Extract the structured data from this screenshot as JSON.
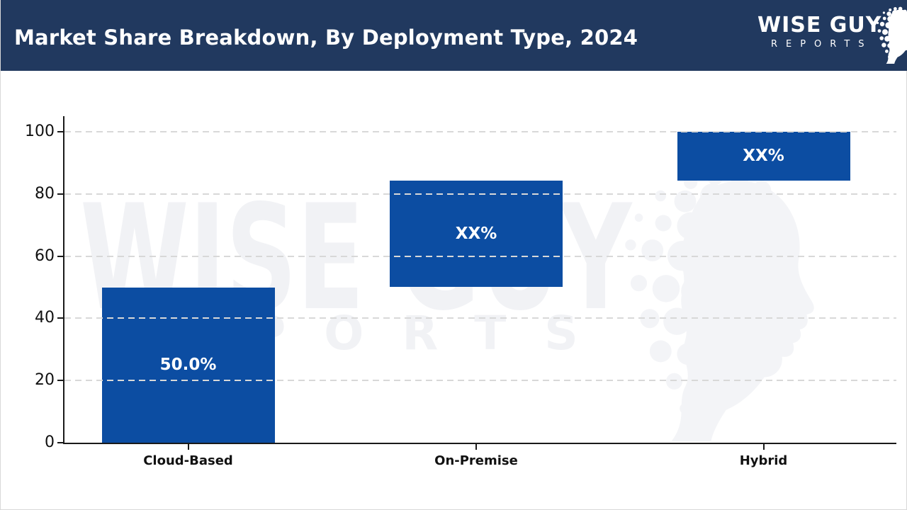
{
  "header": {
    "title": "Market Share Breakdown, By Deployment Type, 2024",
    "logo": {
      "line1": "WISE GUY",
      "line2": "REPORTS"
    }
  },
  "watermark": {
    "line1": "WISE GUY",
    "line2": "REPORTS"
  },
  "chart_data": {
    "type": "bar",
    "subtype": "waterfall",
    "title": "Market Share Breakdown, By Deployment Type, 2024",
    "categories": [
      "Cloud-Based",
      "On-Premise",
      "Hybrid"
    ],
    "series": [
      {
        "name": "Market share (%)",
        "segments": [
          {
            "category": "Cloud-Based",
            "start": 0,
            "end": 50.0,
            "label": "50.0%"
          },
          {
            "category": "On-Premise",
            "start": 50.0,
            "end": 84.3,
            "label": "XX%"
          },
          {
            "category": "Hybrid",
            "start": 84.3,
            "end": 100.0,
            "label": "XX%"
          }
        ]
      }
    ],
    "xlabel": "",
    "ylabel": "",
    "ylim": [
      0,
      100
    ],
    "yticks": [
      0,
      20,
      40,
      60,
      80,
      100
    ],
    "grid": "horizontal-dashed",
    "legend": "none",
    "colors": {
      "bar": "#0C4DA2",
      "grid": "#d8d8d8",
      "axis": "#1a1a1a",
      "bar_label": "#ffffff",
      "header_bg": "#21395F",
      "watermark": "#f1f2f5"
    }
  }
}
